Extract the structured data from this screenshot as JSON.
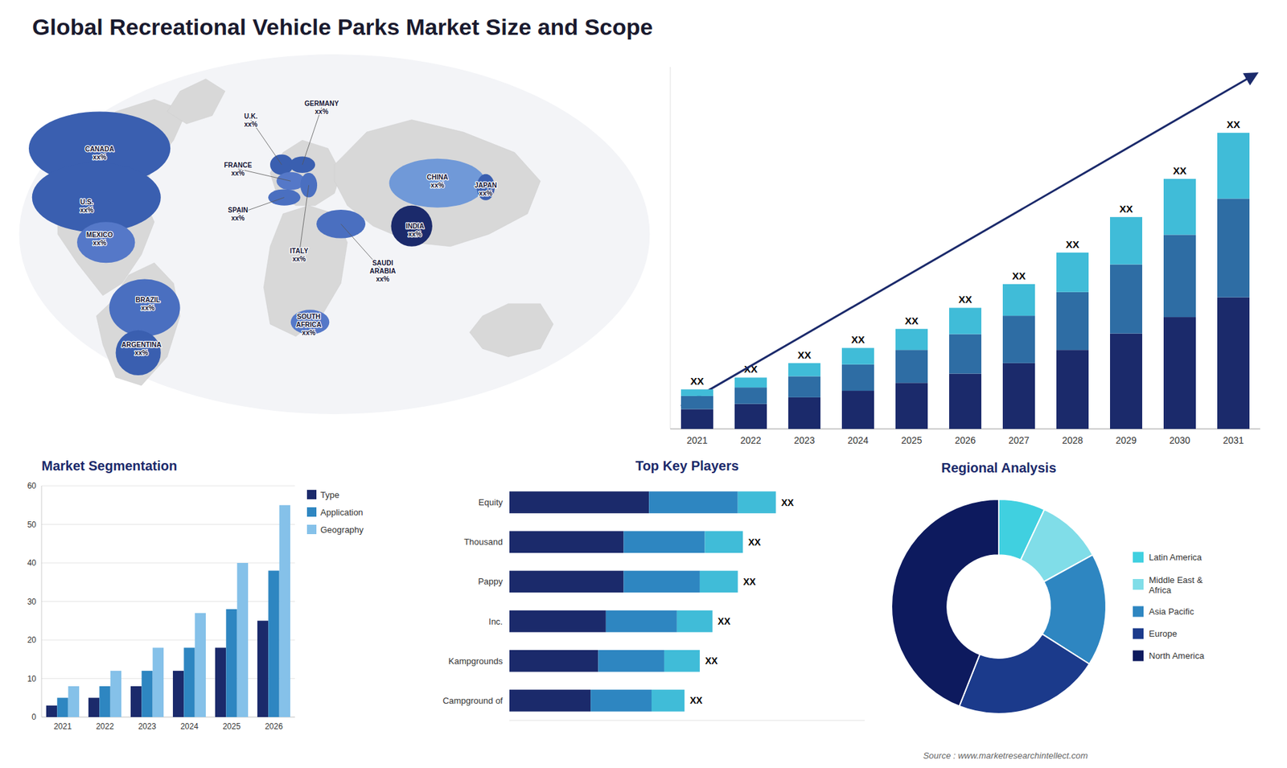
{
  "chart_data": [
    {
      "type": "map",
      "annotations": [
        "U.S.\nxx%",
        "CANADA\nxx%",
        "MEXICO\nxx%",
        "BRAZIL\nxx%",
        "ARGENTINA\nxx%",
        "U.K.\nxx%",
        "FRANCE\nxx%",
        "SPAIN\nxx%",
        "GERMANY\nxx%",
        "ITALY\nxx%",
        "SAUDI\nARABIA\nxx%",
        "SOUTH\nAFRICA\nxx%",
        "CHINA\nxx%",
        "INDIA\nxx%",
        "JAPAN\nxx%"
      ]
    },
    {
      "type": "bar",
      "stacked": true,
      "title": "Global Recreational Vehicle Parks Market Size and Scope",
      "annotations": [
        "Source : www.marketresearchintellect.com"
      ],
      "categories": [
        "2021",
        "2022",
        "2023",
        "2024",
        "2025",
        "2026",
        "2027",
        "2028",
        "2029",
        "2030",
        "2031"
      ],
      "series": [
        {
          "color": "#1b2a6b",
          "values": [
            3.0,
            3.8,
            4.8,
            5.8,
            7.0,
            8.4,
            10.0,
            12.0,
            14.5,
            17.0,
            20.0
          ]
        },
        {
          "color": "#2e6da4",
          "values": [
            2.0,
            2.5,
            3.2,
            4.0,
            5.0,
            6.0,
            7.2,
            8.8,
            10.5,
            12.5,
            15.0
          ]
        },
        {
          "color": "#40bcd8",
          "values": [
            1.0,
            1.5,
            2.0,
            2.5,
            3.2,
            4.0,
            4.8,
            6.0,
            7.2,
            8.5,
            10.0
          ]
        }
      ],
      "value_labels": [
        "XX",
        "XX",
        "XX",
        "XX",
        "XX",
        "XX",
        "XX",
        "XX",
        "XX",
        "XX",
        "XX"
      ],
      "ylim": [
        0,
        55
      ],
      "tick_labels": "x",
      "grid": false
    },
    {
      "type": "bar",
      "title": "Market Segmentation",
      "categories": [
        "2021",
        "2022",
        "2023",
        "2024",
        "2025",
        "2026"
      ],
      "series": [
        {
          "name": "Type",
          "color": "#1b2a6b",
          "values": [
            3,
            5,
            8,
            12,
            18,
            25
          ]
        },
        {
          "name": "Application",
          "color": "#2e86c1",
          "values": [
            5,
            8,
            12,
            18,
            28,
            38
          ]
        },
        {
          "name": "Geography",
          "color": "#85c1e9",
          "values": [
            8,
            12,
            18,
            27,
            40,
            55
          ]
        }
      ],
      "ylim": [
        0,
        60
      ],
      "yticks": [
        0,
        10,
        20,
        30,
        40,
        50,
        60
      ],
      "grid": true,
      "legend": "right"
    },
    {
      "type": "bar",
      "orientation": "horizontal",
      "stacked": true,
      "title": "Top Key Players",
      "categories": [
        "Equity",
        "Thousand",
        "Pappy",
        "Inc.",
        "Kampgrounds",
        "Campground of"
      ],
      "series": [
        {
          "color": "#1b2a6b",
          "values": [
            5.5,
            4.5,
            4.5,
            3.8,
            3.5,
            3.2
          ]
        },
        {
          "color": "#2e86c1",
          "values": [
            3.5,
            3.2,
            3.0,
            2.8,
            2.6,
            2.4
          ]
        },
        {
          "color": "#40bcd8",
          "values": [
            1.5,
            1.5,
            1.5,
            1.4,
            1.4,
            1.3
          ]
        }
      ],
      "value_labels": [
        "XX",
        "XX",
        "XX",
        "XX",
        "XX",
        "XX"
      ],
      "xlim": [
        0,
        14
      ],
      "tick_labels": "y",
      "grid": false
    },
    {
      "type": "pie",
      "title": "Regional Analysis",
      "categories": [
        "Latin America",
        "Middle East &\nAfrica",
        "Asia Pacific",
        "Europe",
        "North America"
      ],
      "values": [
        7,
        10,
        17,
        22,
        44
      ],
      "colors": [
        "#40d0e0",
        "#80dde8",
        "#2e86c1",
        "#1b3a8b",
        "#0d1a5e"
      ],
      "legend": "right"
    }
  ]
}
